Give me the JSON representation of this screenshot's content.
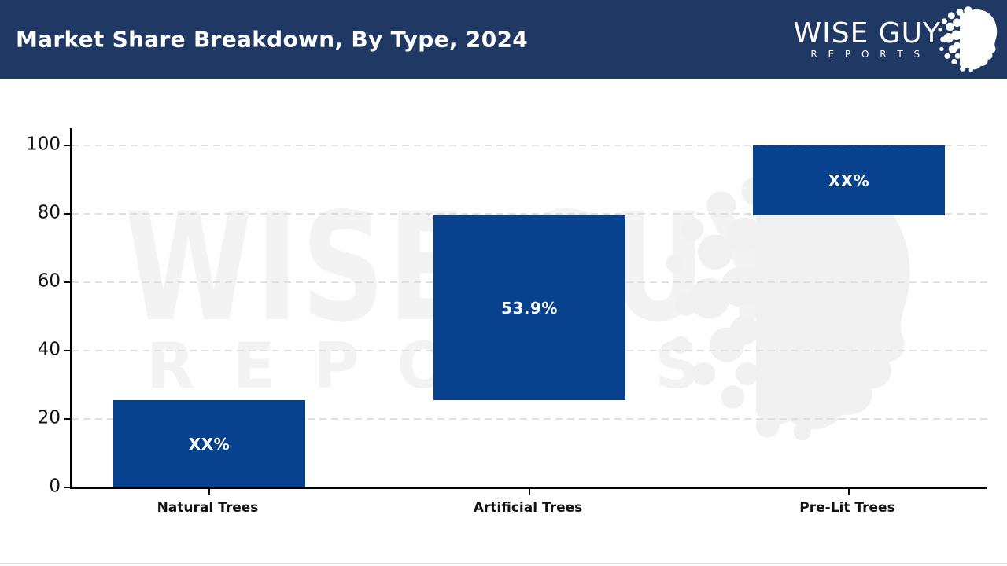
{
  "header": {
    "title": "Market Share Breakdown, By Type, 2024",
    "logo": {
      "line1": "WISE GUY",
      "line2": "R E P O R T S"
    }
  },
  "watermark": {
    "line1": "WISE GUY",
    "line2": "R E P O R T S"
  },
  "chart_data": {
    "type": "bar",
    "subtype": "waterfall",
    "title": "Market Share Breakdown, By Type, 2024",
    "categories": [
      "Natural Trees",
      "Artificial Trees",
      "Pre-Lit Trees"
    ],
    "segments": [
      {
        "category": "Natural Trees",
        "start": 0,
        "end": 25.5,
        "value_label": "XX%"
      },
      {
        "category": "Artificial Trees",
        "start": 25.5,
        "end": 79.4,
        "value_label": "53.9%"
      },
      {
        "category": "Pre-Lit Trees",
        "start": 79.4,
        "end": 100,
        "value_label": "XX%"
      }
    ],
    "yticks": [
      0,
      20,
      40,
      60,
      80,
      100
    ],
    "ylim": [
      0,
      105
    ],
    "xlabel": "",
    "ylabel": "",
    "grid": "horizontal-dashed",
    "legend": "none",
    "bar_color": "#08428f",
    "bar_label_color": "#ffffff"
  },
  "colors": {
    "header_bg": "#1f3864",
    "bar": "#08428f",
    "grid": "#e0e0e0",
    "axis": "#000000",
    "watermark": "#f3f3f3",
    "bottom_rule": "#d9d9d9"
  }
}
